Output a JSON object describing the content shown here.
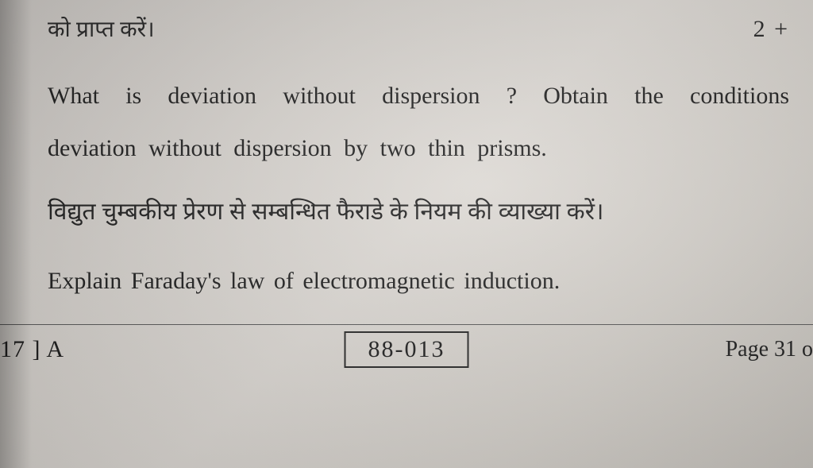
{
  "top": {
    "hindi_fragment": "को प्राप्त करें।",
    "marks": "2 +"
  },
  "question1": {
    "en_line1": "What is deviation without dispersion ? Obtain the conditions",
    "en_line2": "deviation without dispersion by two thin prisms."
  },
  "question2": {
    "hi": "विद्युत चुम्बकीय प्रेरण से सम्बन्धित फैराडे के नियम की व्याख्या करें।",
    "en": "Explain Faraday's law of electromagnetic induction."
  },
  "footer": {
    "left": "17 ] A",
    "center": "88-013",
    "right": "Page 31 o"
  },
  "style": {
    "bg_gradient": [
      "#c8c4c0",
      "#d5d1cc",
      "#dbd7d2",
      "#d2cec8",
      "#c5c1bb"
    ],
    "text_color": "#1a1a1a",
    "body_fontsize_pt": 22,
    "line_height": 2.2,
    "hr_color": "#555",
    "box_border_color": "#222",
    "font_family_latin": "Georgia, 'Times New Roman', serif",
    "font_family_devanagari": "'Noto Sans Devanagari', 'Mangal', serif"
  }
}
